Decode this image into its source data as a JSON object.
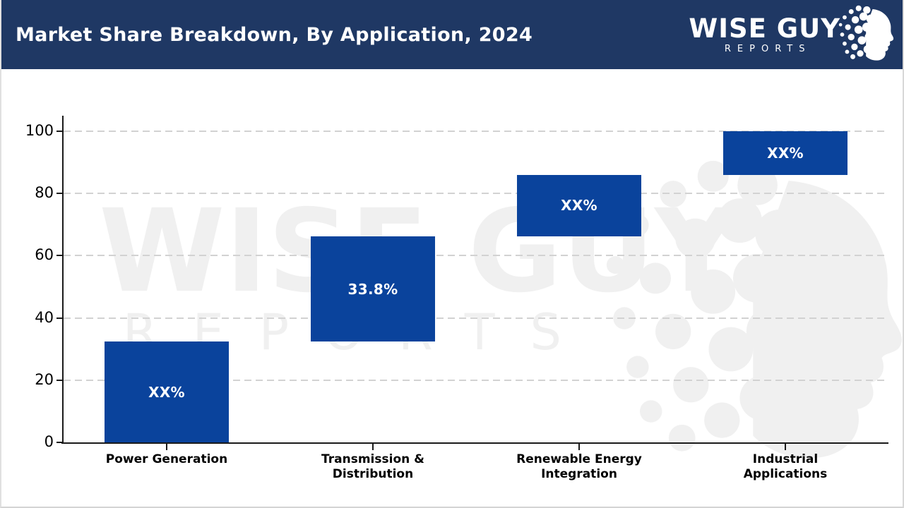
{
  "header": {
    "title": "Market Share Breakdown, By Application, 2024",
    "logo": {
      "line1": "WISE GUY",
      "line2": "REPORTS"
    }
  },
  "watermark": {
    "line1": "WISE GUY",
    "line2": "REPORTS"
  },
  "colors": {
    "header_bg": "#1f3864",
    "bar": "#0a439c",
    "grid": "#d2d2d2",
    "axis": "#1a1a1a",
    "watermark": "#f0f0f0"
  },
  "chart_data": {
    "type": "bar",
    "subtype": "floating-waterfall",
    "title": "Market Share Breakdown, By Application, 2024",
    "categories": [
      "Power Generation",
      "Transmission & Distribution",
      "Renewable Energy Integration",
      "Industrial Applications"
    ],
    "segments": [
      {
        "name": "Power Generation",
        "name_lines": [
          "Power Generation"
        ],
        "start": 0,
        "end": 32.4,
        "value_label": "XX%"
      },
      {
        "name": "Transmission & Distribution",
        "name_lines": [
          "Transmission &",
          "Distribution"
        ],
        "start": 32.4,
        "end": 66.2,
        "value_label": "33.8%"
      },
      {
        "name": "Renewable Energy Integration",
        "name_lines": [
          "Renewable Energy",
          "Integration"
        ],
        "start": 66.2,
        "end": 86.0,
        "value_label": "XX%"
      },
      {
        "name": "Industrial Applications",
        "name_lines": [
          "Industrial",
          "Applications"
        ],
        "start": 86.0,
        "end": 100.0,
        "value_label": "XX%"
      }
    ],
    "xlabel": "",
    "ylabel": "",
    "ylim": [
      0,
      100
    ],
    "yticks": [
      0,
      20,
      40,
      60,
      80,
      100
    ],
    "grid": "horizontal-dashed",
    "legend": "none",
    "bar_color": "#0a439c"
  }
}
